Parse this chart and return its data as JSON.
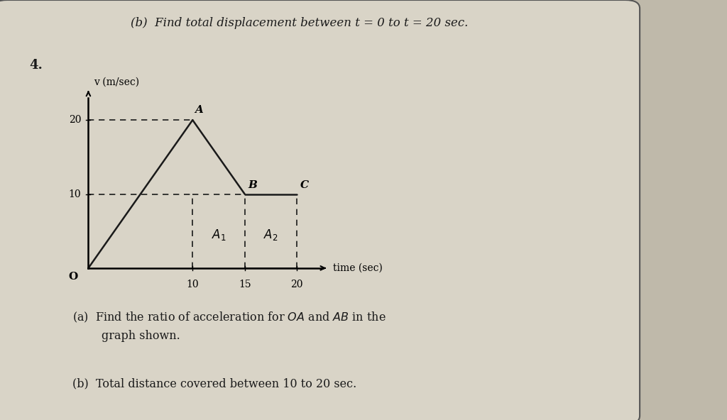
{
  "title_top": "(b)  Find total displacement between t = 0 to t = 20 sec.",
  "question_num": "4.",
  "ylabel": "v (m/sec)",
  "xlabel": "time (sec)",
  "graph_points": {
    "O": [
      0,
      0
    ],
    "A": [
      10,
      20
    ],
    "B": [
      15,
      10
    ],
    "C": [
      20,
      10
    ]
  },
  "line_color": "#1a1a1a",
  "dashed_color": "#1a1a1a",
  "rect_border_color": "#1a1a1a",
  "label_A": "A",
  "label_B": "B",
  "label_C": "C",
  "label_A1": "$A_1$",
  "label_A2": "$A_2$",
  "label_O": "O",
  "sub_question_a": "(a)  Find the ratio of acceleration for $OA$ and $AB$ in the\n        graph shown.",
  "sub_question_b": "(b)  Total distance covered between 10 to 20 sec.",
  "bg_color": "#bfb9aa",
  "card_color": "#d9d4c7",
  "xlim": [
    -1.5,
    25
  ],
  "ylim": [
    -3.5,
    26
  ]
}
